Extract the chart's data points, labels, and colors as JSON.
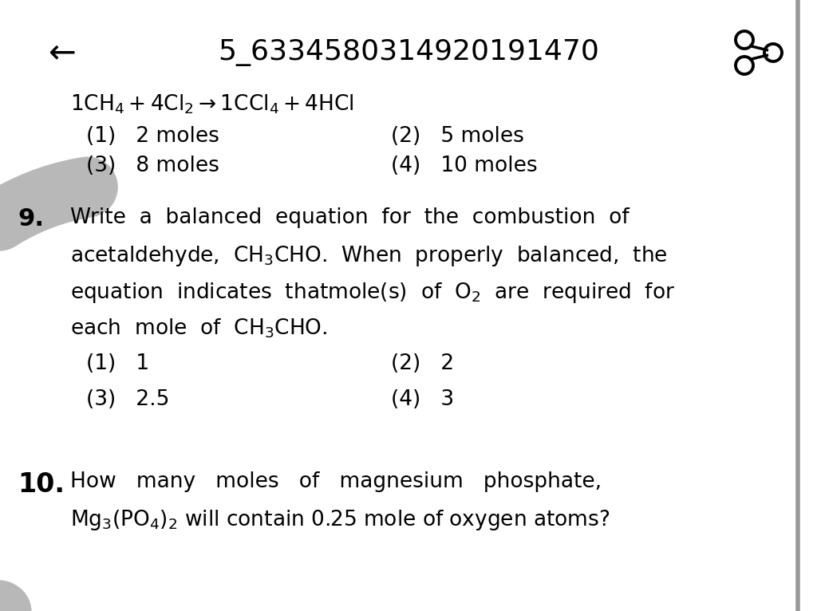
{
  "bg_color": "#ffffff",
  "header_text": "5_6334580314920191470",
  "prev_opts": [
    [
      "(1)   2 moles",
      "(2)   5 moles"
    ],
    [
      "(3)   8 moles",
      "(4)   10 moles"
    ]
  ],
  "q_number": "9.",
  "q9_lines": [
    "Write  a  balanced  equation  for  the  combustion  of",
    "acetaldehyde,  CH$_3$CHO.  When  properly  balanced,  the",
    "equation  indicates  thatmole(s)  of  O$_2$  are  required  for",
    "each  mole  of  CH$_3$CHO."
  ],
  "q9_opts": [
    [
      "(1)   1",
      "(2)   2"
    ],
    [
      "(3)   2.5",
      "(4)   3"
    ]
  ],
  "q10_number": "10.",
  "q10_lines": [
    "How   many   moles   of   magnesium   phosphate,",
    "Mg$_3$(PO$_4$)$_2$ will contain 0.25 mole of oxygen atoms?"
  ],
  "watermark_color": "#b8b8b8",
  "border_color": "#999999",
  "font_size_header": 26,
  "font_size_eq": 19,
  "font_size_body": 19,
  "font_size_opts": 19,
  "font_size_q_num": 22,
  "font_size_10_num": 24
}
